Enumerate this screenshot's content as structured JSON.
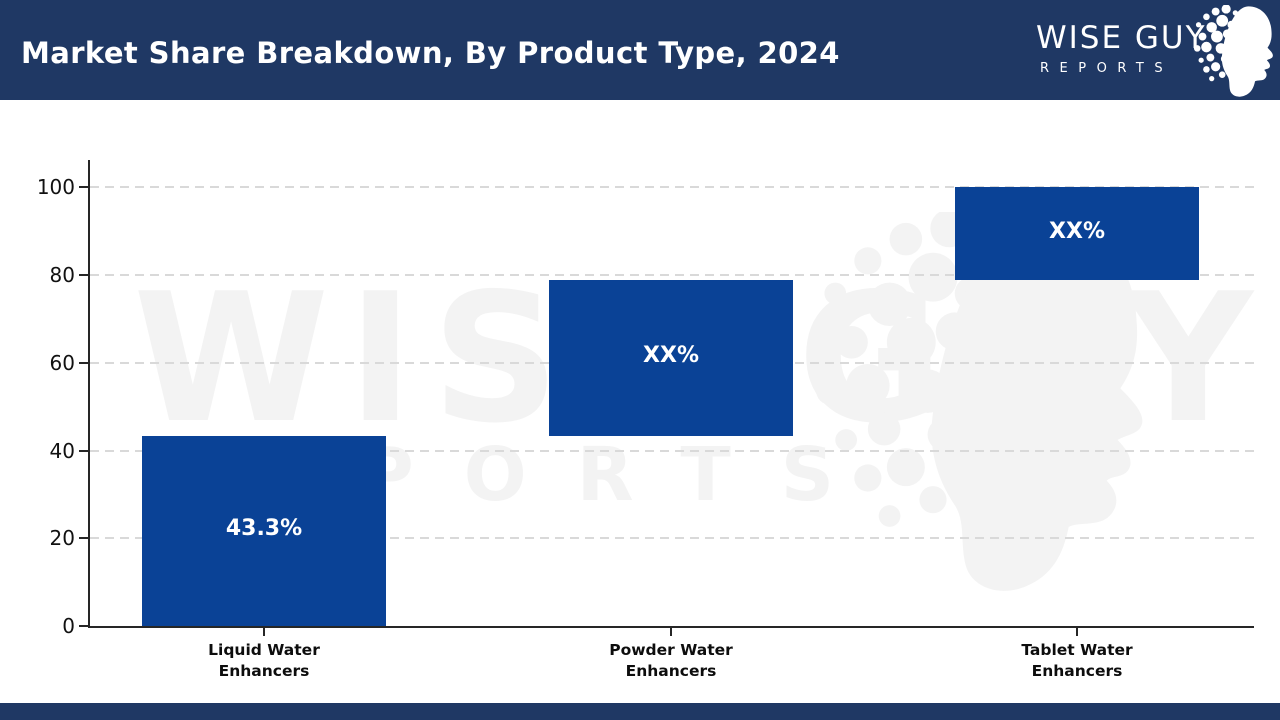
{
  "header": {
    "title": "Market Share Breakdown, By Product Type, 2024",
    "brand": {
      "line1": "WISE GUY",
      "line2": "REPORTS"
    }
  },
  "watermark": {
    "line1": "WISE GUY",
    "line2": "REPORTS"
  },
  "footer": {},
  "chart_data": {
    "type": "bar",
    "subtype": "waterfall",
    "title": "Market Share Breakdown, By Product Type, 2024",
    "categories": [
      "Liquid Water Enhancers",
      "Powder Water Enhancers",
      "Tablet Water Enhancers"
    ],
    "category_label_lines": [
      [
        "Liquid Water",
        "Enhancers"
      ],
      [
        "Powder Water",
        "Enhancers"
      ],
      [
        "Tablet Water",
        "Enhancers"
      ]
    ],
    "segments": [
      {
        "category": "Liquid Water Enhancers",
        "start": 0,
        "end": 43.3,
        "label": "43.3%"
      },
      {
        "category": "Powder Water Enhancers",
        "start": 43.3,
        "end": 78.8,
        "label": "XX%"
      },
      {
        "category": "Tablet Water Enhancers",
        "start": 78.8,
        "end": 100,
        "label": "XX%"
      }
    ],
    "ylim": [
      0,
      100
    ],
    "yticks": [
      0,
      20,
      40,
      60,
      80,
      100
    ],
    "xlabel": "",
    "ylabel": "",
    "grid": "horizontal-dashed",
    "legend": "none",
    "bar_color": "#0a4296"
  },
  "colors": {
    "header_bg": "#1f3864",
    "footer_bg": "#1f3864",
    "bar": "#0a4296",
    "grid": "#d9d9d9",
    "axis": "#262626",
    "watermark": "#f3f3f3",
    "title_text": "#ffffff"
  }
}
